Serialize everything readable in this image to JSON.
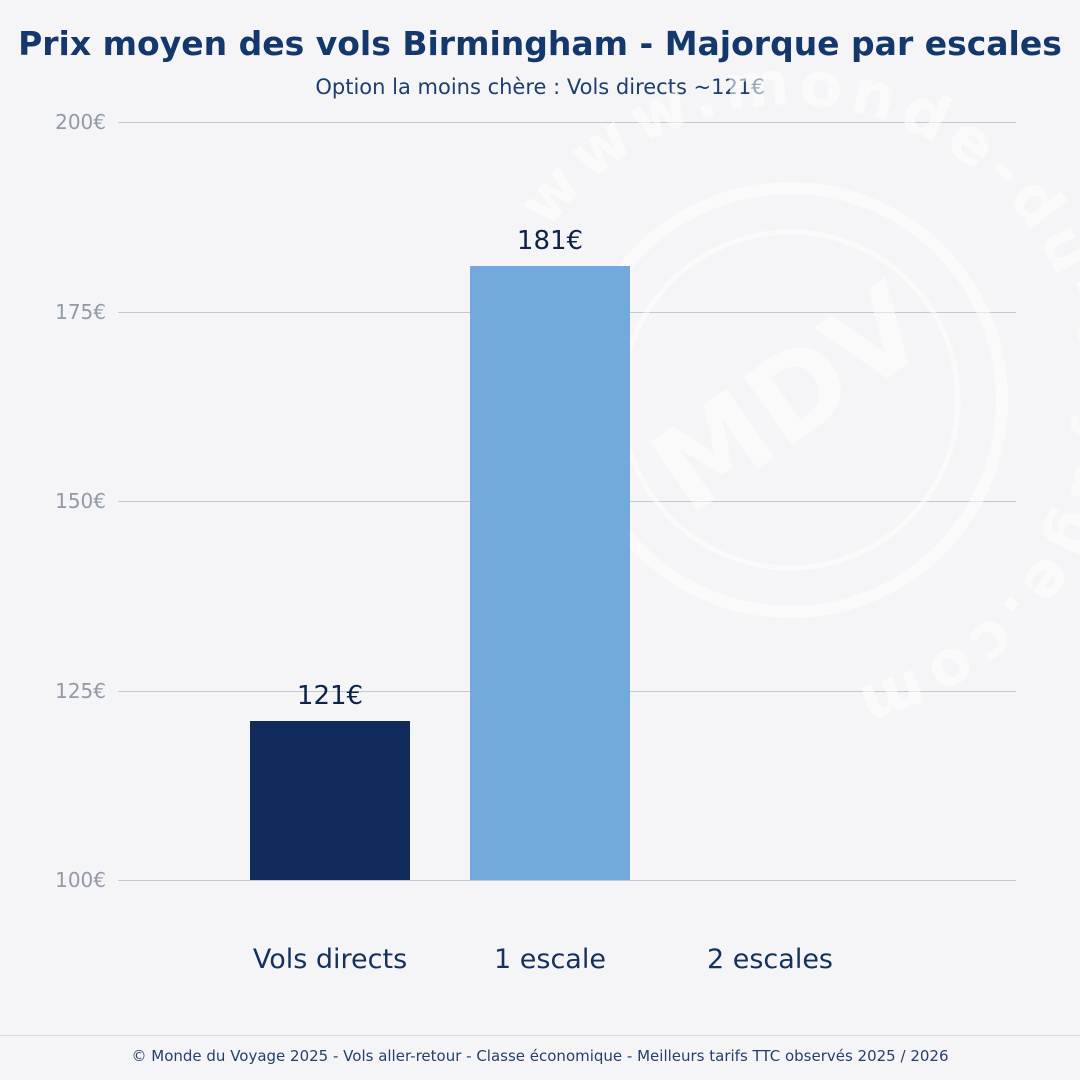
{
  "title": "Prix moyen des vols Birmingham - Majorque par escales",
  "subtitle": "Option la moins chère : Vols directs ~121€",
  "footer": {
    "text": "© Monde du Voyage 2025 - Vols aller-retour - Classe économique - Meilleurs tarifs TTC observés 2025 / 2026"
  },
  "watermark": {
    "ring_text": "www.monde-du-voyage.com",
    "center_text": "MDV"
  },
  "colors": {
    "background": "#f5f5f7",
    "title": "#14386b",
    "gridline": "#c4c9d4",
    "ytick": "#9299a8",
    "bar_dark": "#102a5c",
    "bar_light": "#74a9dd"
  },
  "chart_data": {
    "type": "bar",
    "title": "Prix moyen des vols Birmingham - Majorque par escales",
    "subtitle": "Option la moins chère : Vols directs ~121€",
    "categories": [
      "Vols directs",
      "1 escale",
      "2 escales"
    ],
    "values": [
      121,
      181,
      null
    ],
    "value_labels": [
      "121€",
      "181€",
      ""
    ],
    "bar_colors": [
      "#102a5c",
      "#74a9dd",
      "#74a9dd"
    ],
    "xlabel": "",
    "ylabel": "",
    "ylim": [
      100,
      200
    ],
    "yticks": [
      100,
      125,
      150,
      175,
      200
    ],
    "ytick_labels": [
      "100€",
      "125€",
      "150€",
      "175€",
      "200€"
    ],
    "grid": true,
    "legend": false
  }
}
